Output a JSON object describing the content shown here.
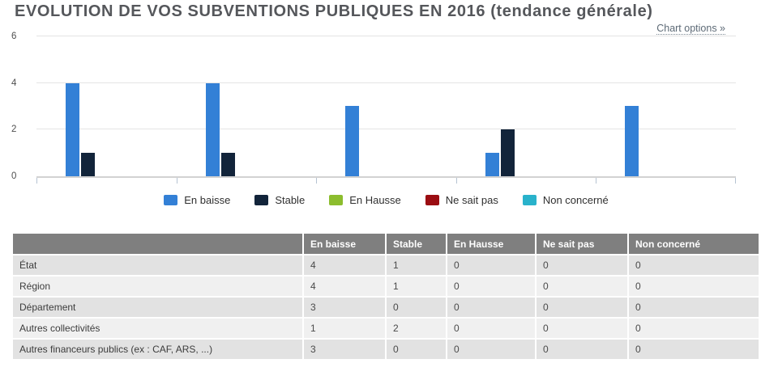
{
  "header": {
    "title": "EVOLUTION DE VOS SUBVENTIONS PUBLIQUES EN 2016 (tendance générale)",
    "chart_options_label": "Chart options »"
  },
  "chart_data": {
    "type": "bar",
    "title": "EVOLUTION DE VOS SUBVENTIONS PUBLIQUES EN 2016 (tendance générale)",
    "categories": [
      "État",
      "Région",
      "Département",
      "Autres collectivités",
      "Autres financeurs publics (ex : CAF, ARS, ...)"
    ],
    "series": [
      {
        "name": "En baisse",
        "color": "#3380d6",
        "values": [
          4,
          4,
          3,
          1,
          3
        ]
      },
      {
        "name": "Stable",
        "color": "#12243a",
        "values": [
          1,
          1,
          0,
          2,
          0
        ]
      },
      {
        "name": "En Hausse",
        "color": "#8cbd2e",
        "values": [
          0,
          0,
          0,
          0,
          0
        ]
      },
      {
        "name": "Ne sait pas",
        "color": "#9b0d12",
        "values": [
          0,
          0,
          0,
          0,
          0
        ]
      },
      {
        "name": "Non concerné",
        "color": "#29b2cb",
        "values": [
          0,
          0,
          0,
          0,
          0
        ]
      }
    ],
    "xlabel": "",
    "ylabel": "",
    "ylim": [
      0,
      6
    ],
    "yticks": [
      0,
      2,
      4,
      6
    ],
    "grid": true,
    "legend_position": "bottom"
  },
  "table": {
    "columns": [
      "En baisse",
      "Stable",
      "En Hausse",
      "Ne sait pas",
      "Non concerné"
    ],
    "rows": [
      {
        "label": "État",
        "values": [
          "4",
          "1",
          "0",
          "0",
          "0"
        ]
      },
      {
        "label": "Région",
        "values": [
          "4",
          "1",
          "0",
          "0",
          "0"
        ]
      },
      {
        "label": "Département",
        "values": [
          "3",
          "0",
          "0",
          "0",
          "0"
        ]
      },
      {
        "label": "Autres collectivités",
        "values": [
          "1",
          "2",
          "0",
          "0",
          "0"
        ]
      },
      {
        "label": "Autres financeurs publics (ex : CAF, ARS, ...)",
        "values": [
          "3",
          "0",
          "0",
          "0",
          "0"
        ]
      }
    ]
  }
}
